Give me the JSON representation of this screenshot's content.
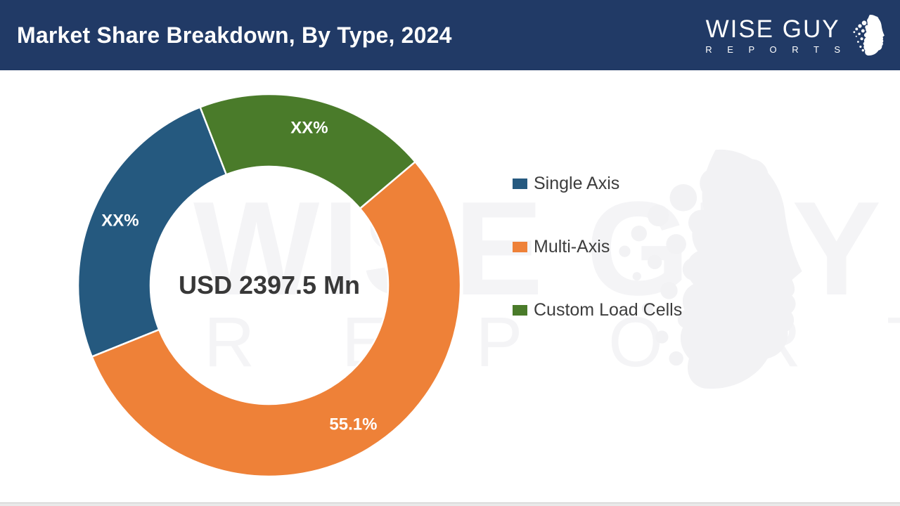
{
  "header": {
    "title": "Market Share Breakdown, By Type, 2024",
    "bg_color": "#213A66",
    "logo": {
      "line1": "WISE GUY",
      "line2": "R E P O R T S"
    }
  },
  "watermark": {
    "line1": "WISE GUY",
    "line2": "R E P O R T S"
  },
  "chart_data": {
    "type": "pie",
    "donut": true,
    "title": "Market Share Breakdown, By Type, 2024",
    "center_label": "USD 2397.5 Mn",
    "start_angle_deg_ccw_from_east": 111.2,
    "direction": "counterclockwise",
    "legend_position": "right",
    "segments": [
      {
        "label": "Single Axis",
        "value_pct": 25.2,
        "display_label": "XX%",
        "color": "#25597F"
      },
      {
        "label": "Multi-Axis",
        "value_pct": 55.1,
        "display_label": "55.1%",
        "color": "#EE8138"
      },
      {
        "label": "Custom Load Cells",
        "value_pct": 19.7,
        "display_label": "XX%",
        "color": "#4A7B2A"
      }
    ]
  }
}
